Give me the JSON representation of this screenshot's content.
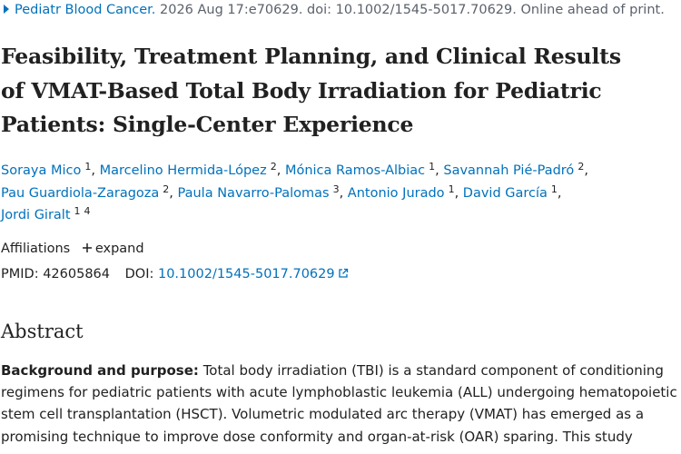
{
  "citation": {
    "journal": "Pediatr Blood Cancer.",
    "details": "2026 Aug 17:e70629. doi: 10.1002/1545-5017.70629. Online ahead of print."
  },
  "title_lines": [
    "Feasibility, Treatment Planning, and Clinical Results",
    "of VMAT-Based Total Body Irradiation for Pediatric",
    "Patients: Single-Center Experience"
  ],
  "author_separator": ",",
  "authors": [
    {
      "name": "Soraya Mico",
      "affiliations": [
        "1"
      ]
    },
    {
      "name": "Marcelino Hermida-López",
      "affiliations": [
        "2"
      ]
    },
    {
      "name": "Mónica Ramos-Albiac",
      "affiliations": [
        "1"
      ]
    },
    {
      "name": "Savannah Pié-Padró",
      "affiliations": [
        "2"
      ]
    },
    {
      "name": "Pau Guardiola-Zaragoza",
      "affiliations": [
        "2"
      ]
    },
    {
      "name": "Paula Navarro-Palomas",
      "affiliations": [
        "3"
      ]
    },
    {
      "name": "Antonio Jurado",
      "affiliations": [
        "1"
      ]
    },
    {
      "name": "David García",
      "affiliations": [
        "1"
      ]
    },
    {
      "name": "Jordi Giralt",
      "affiliations": [
        "1",
        "4"
      ]
    }
  ],
  "affiliations": {
    "label": "Affiliations",
    "toggle": "expand"
  },
  "identifiers": {
    "pmid_label": "PMID:",
    "pmid": "42605864",
    "doi_label": "DOI:",
    "doi": "10.1002/1545-5017.70629"
  },
  "abstract": {
    "heading": "Abstract",
    "label": "Background and purpose:",
    "lines": [
      "Total body irradiation (TBI) is a standard component of conditioning",
      "regimens for pediatric patients with acute lymphoblastic leukemia (ALL) undergoing hematopoietic",
      "stem cell transplantation (HSCT). Volumetric modulated arc therapy (VMAT) has emerged as a",
      "promising technique to improve dose conformity and organ-at-risk (OAR) sparing. This study"
    ]
  }
}
